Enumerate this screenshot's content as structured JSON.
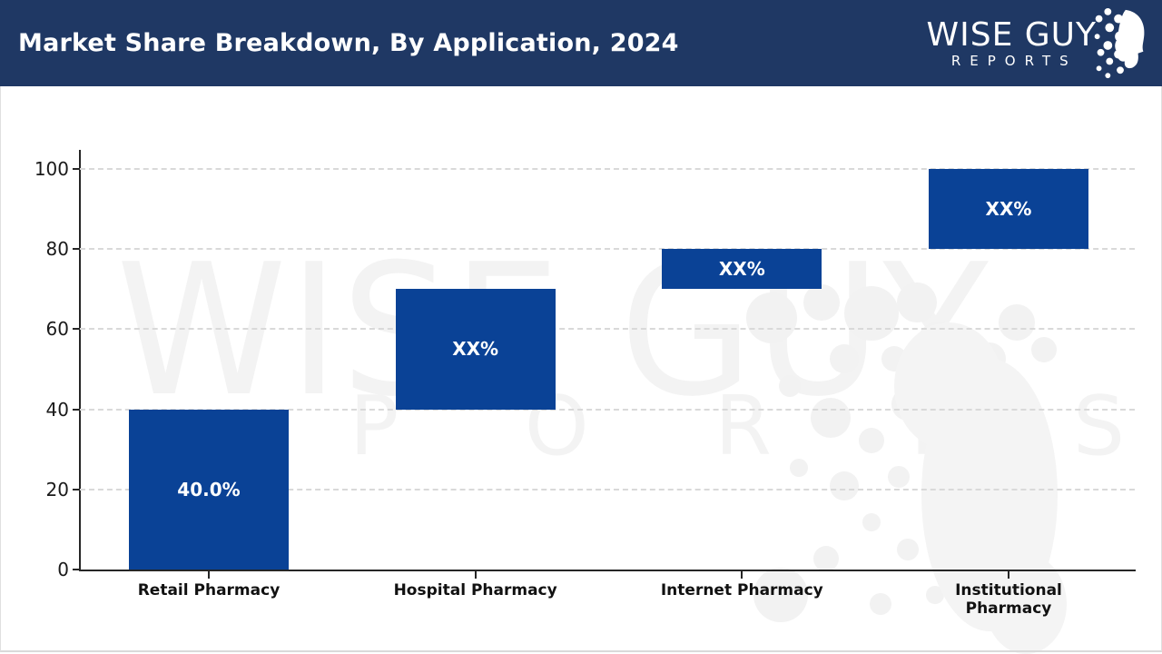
{
  "header": {
    "title": "Market Share Breakdown, By Application, 2024",
    "background_color": "#1f3864",
    "logo": {
      "line1": "WISE GUY",
      "line2": "REPORTS"
    }
  },
  "watermark": {
    "line1": "WISE GUY",
    "line2": "P O R T S"
  },
  "chart_data": {
    "type": "bar",
    "subtype": "waterfall",
    "title": "Market Share Breakdown, By Application, 2024",
    "xlabel": "",
    "ylabel": "",
    "ylim": [
      0,
      105
    ],
    "yticks": [
      0,
      20,
      40,
      60,
      80,
      100
    ],
    "grid": "horizontal-dashed",
    "legend": "none",
    "bar_color": "#0a4296",
    "categories": [
      "Retail Pharmacy",
      "Hospital Pharmacy",
      "Internet Pharmacy",
      "Institutional Pharmacy"
    ],
    "tick_labels": [
      "Retail Pharmacy",
      "Hospital Pharmacy",
      "Internet Pharmacy",
      "Institutional\nPharmacy"
    ],
    "segments": [
      {
        "category": "Retail Pharmacy",
        "start": 0,
        "end": 40,
        "value": 40,
        "label": "40.0%"
      },
      {
        "category": "Hospital Pharmacy",
        "start": 40,
        "end": 70,
        "value": 30,
        "label": "XX%"
      },
      {
        "category": "Internet Pharmacy",
        "start": 70,
        "end": 80,
        "value": 10,
        "label": "XX%"
      },
      {
        "category": "Institutional Pharmacy",
        "start": 80,
        "end": 100,
        "value": 20,
        "label": "XX%"
      }
    ]
  }
}
